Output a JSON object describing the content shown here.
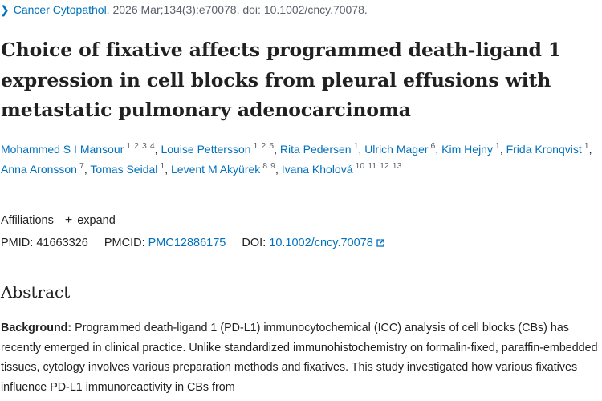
{
  "citation": {
    "journal": "Cancer Cytopathol.",
    "details": "2026 Mar;134(3):e70078. doi: 10.1002/cncy.70078."
  },
  "title": "Choice of fixative affects programmed death‐ligand 1 expression in cell blocks from pleural effusions with metastatic pulmonary adenocarcinoma",
  "authors": [
    {
      "name": "Mohammed S I Mansour",
      "affils": [
        "1",
        "2",
        "3",
        "4"
      ]
    },
    {
      "name": "Louise Pettersson",
      "affils": [
        "1",
        "2",
        "5"
      ]
    },
    {
      "name": "Rita Pedersen",
      "affils": [
        "1"
      ]
    },
    {
      "name": "Ulrich Mager",
      "affils": [
        "6"
      ]
    },
    {
      "name": "Kim Hejny",
      "affils": [
        "1"
      ]
    },
    {
      "name": "Frida Kronqvist",
      "affils": [
        "1"
      ]
    },
    {
      "name": "Anna Aronsson",
      "affils": [
        "7"
      ]
    },
    {
      "name": "Tomas Seidal",
      "affils": [
        "1"
      ]
    },
    {
      "name": "Levent M Akyürek",
      "affils": [
        "8",
        "9"
      ]
    },
    {
      "name": "Ivana Kholová",
      "affils": [
        "10",
        "11",
        "12",
        "13"
      ]
    }
  ],
  "affiliations": {
    "label": "Affiliations",
    "expand_label": "expand"
  },
  "ids": {
    "pmid_label": "PMID:",
    "pmid": "41663326",
    "pmcid_label": "PMCID:",
    "pmcid": "PMC12886175",
    "doi_label": "DOI:",
    "doi": "10.1002/cncy.70078"
  },
  "abstract": {
    "heading": "Abstract",
    "background_label": "Background:",
    "background_text": "Programmed death-ligand 1 (PD-L1) immunocytochemical (ICC) analysis of cell blocks (CBs) has recently emerged in clinical practice. Unlike standardized immunohistochemistry on formalin-fixed, paraffin-embedded tissues, cytology involves various preparation methods and fixatives. This study investigated how various fixatives influence PD-L1 immunoreactivity in CBs from"
  }
}
